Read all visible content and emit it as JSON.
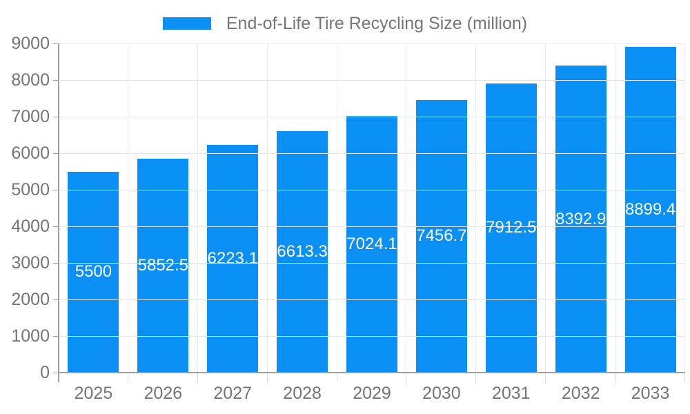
{
  "chart_data": {
    "type": "bar",
    "title": "End-of-Life Tire Recycling Size (million)",
    "series_name": "End-of-Life Tire Recycling Size (million)",
    "categories": [
      "2025",
      "2026",
      "2027",
      "2028",
      "2029",
      "2030",
      "2031",
      "2032",
      "2033"
    ],
    "values": [
      5500,
      5852.5,
      6223.1,
      6613.3,
      7024.1,
      7456.7,
      7912.5,
      8392.9,
      8899.4
    ],
    "xlabel": "",
    "ylabel": "",
    "ylim": [
      0,
      9000
    ],
    "ytick_step": 1000,
    "grid": true,
    "legend_position": "top-center",
    "value_labels": "inside-center"
  },
  "colors": {
    "bar": "#0a90f5",
    "bar_label": "#ffffff",
    "axis_line": "#9e9e9e",
    "h_gridline": "#e6e6e6",
    "v_gridline": "#ebebeb",
    "x_tick": "#d9d9d9",
    "text": "#757575",
    "background": "#ffffff"
  }
}
